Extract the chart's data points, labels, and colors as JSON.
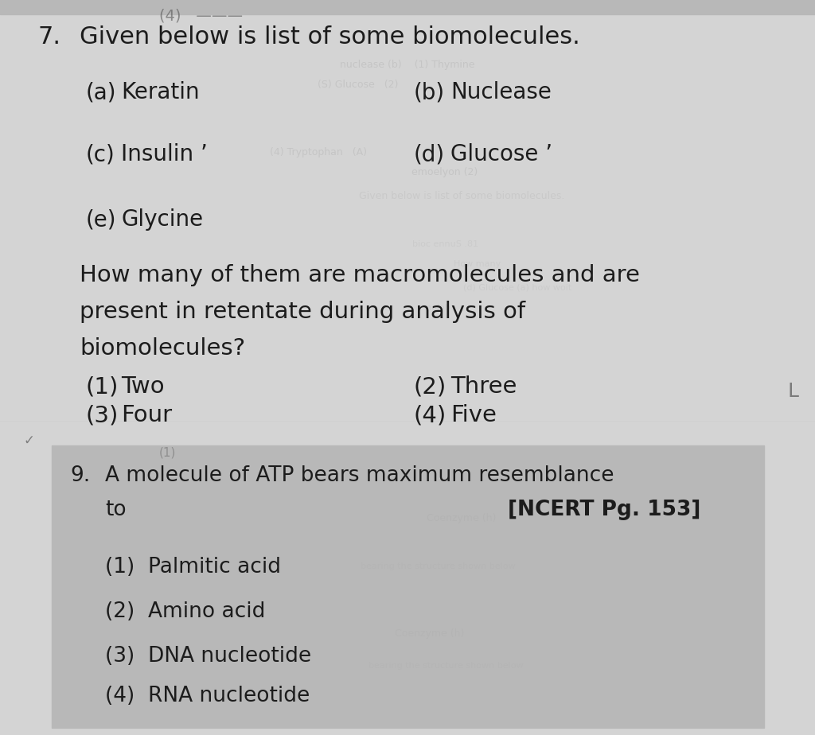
{
  "bg_top": "#d4d4d4",
  "bg_bottom_strip": "#c5c5c5",
  "bg_q9_box": "#b8b8b8",
  "text_dark": "#1c1c1c",
  "text_normal": "#222222",
  "ghost_color": "#aaaaaa",
  "q7_num": "7.",
  "q7_title": "Given below is list of some biomolecules.",
  "opt_a_label": "(a)",
  "opt_a_text": "Keratin",
  "opt_b_label": "(b)",
  "opt_b_text": "Nuclease",
  "opt_c_label": "(c)",
  "opt_c_text": "Insulin ’",
  "opt_d_label": "(d)",
  "opt_d_text": "Glucose ’",
  "opt_e_label": "(e)",
  "opt_e_text": "Glycine",
  "q7_body1": "How many of them are macromolecules and are",
  "q7_body2": "present in retentate during analysis of",
  "q7_body3": "biomolecules?",
  "ans1_label": "(1)",
  "ans1_text": "Two",
  "ans2_label": "(2)",
  "ans2_text": "Three",
  "ans3_label": "(3)",
  "ans3_text": "Four",
  "ans4_label": "(4)",
  "ans4_text": "Five",
  "q9_num": "9.",
  "q9_line1": "A molecule of ATP bears maximum resemblance",
  "q9_line2": "to",
  "q9_ref": "[NCERT Pg. 153]",
  "q9_ans1": "(1)  Palmitic acid",
  "q9_ans2": "(2)  Amino acid",
  "q9_ans3": "(3)  DNA nucleotide",
  "q9_ans4": "(4)  RNA nucleotide",
  "figw": 10.24,
  "figh": 9.24,
  "dpi": 100
}
